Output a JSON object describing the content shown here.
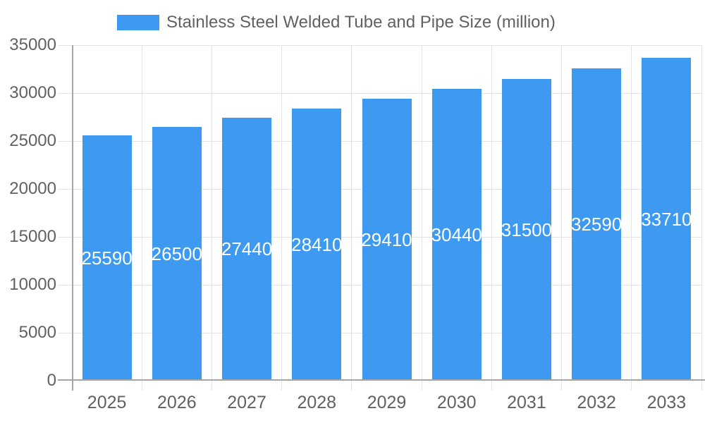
{
  "chart_data": {
    "type": "bar",
    "title": "Stainless Steel Welded Tube and Pipe Size (million)",
    "categories": [
      "2025",
      "2026",
      "2027",
      "2028",
      "2029",
      "2030",
      "2031",
      "2032",
      "2033"
    ],
    "values": [
      25590,
      26500,
      27440,
      28410,
      29410,
      30440,
      31500,
      32590,
      33710
    ],
    "xlabel": "",
    "ylabel": "",
    "ylim": [
      0,
      35000
    ],
    "yticks": [
      0,
      5000,
      10000,
      15000,
      20000,
      25000,
      30000,
      35000
    ],
    "grid": true,
    "bar_labels_inside": true,
    "legend_position": "top",
    "colors": {
      "bar": "#3d9af0",
      "bar_label": "#ffffff",
      "axis_text": "#616161",
      "grid_line": "#e3e3e3",
      "axis_line": "#a5a5a5",
      "background": "#ffffff"
    }
  }
}
